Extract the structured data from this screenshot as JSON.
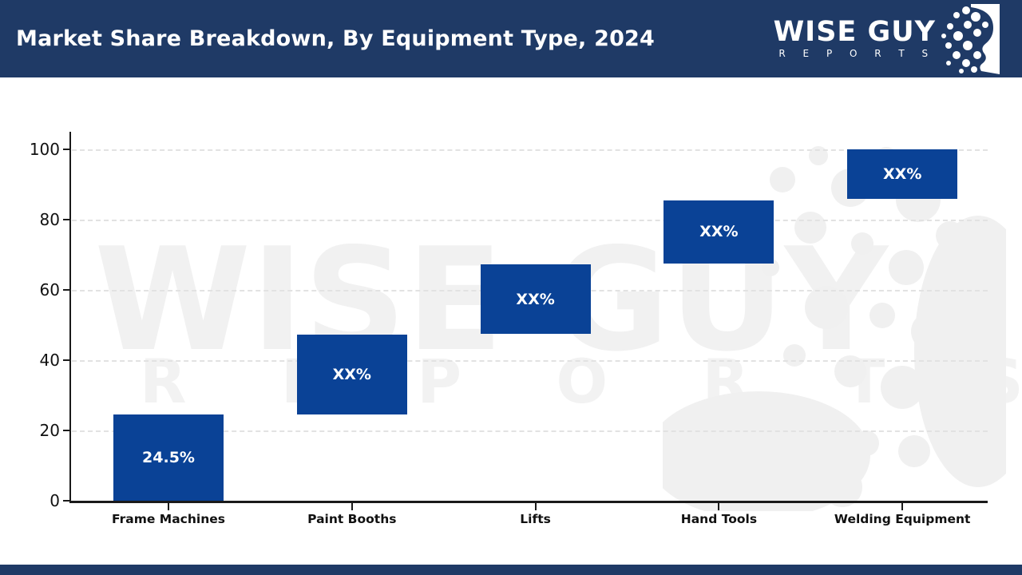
{
  "header": {
    "title": "Market Share Breakdown, By Equipment Type, 2024",
    "logo": {
      "line1": "WISE GUY",
      "line2": "R E P O R T S"
    },
    "bg_color": "#1f3a66"
  },
  "watermark": {
    "line1": "WISE GUY",
    "line2": "R E P O R T S"
  },
  "chart_data": {
    "type": "bar",
    "subtype": "waterfall",
    "title": "Market Share Breakdown, By Equipment Type, 2024",
    "categories": [
      "Frame Machines",
      "Paint Booths",
      "Lifts",
      "Hand Tools",
      "Welding Equipment"
    ],
    "segments": [
      {
        "category": "Frame Machines",
        "start": 0,
        "end": 24.5,
        "label": "24.5%"
      },
      {
        "category": "Paint Booths",
        "start": 24.5,
        "end": 47.2,
        "label": "XX%"
      },
      {
        "category": "Lifts",
        "start": 47.5,
        "end": 67.2,
        "label": "XX%"
      },
      {
        "category": "Hand Tools",
        "start": 67.6,
        "end": 85.5,
        "label": "XX%"
      },
      {
        "category": "Welding Equipment",
        "start": 85.9,
        "end": 100,
        "label": "XX%"
      }
    ],
    "yticks": [
      0,
      20,
      40,
      60,
      80,
      100
    ],
    "ylim": [
      0,
      105
    ],
    "xlabel": "",
    "ylabel": "",
    "grid": "horizontal dashed",
    "legend": "none",
    "bar_color": "#0a4296",
    "label_color": "#ffffff",
    "axis_color": "#1a1a1a"
  }
}
